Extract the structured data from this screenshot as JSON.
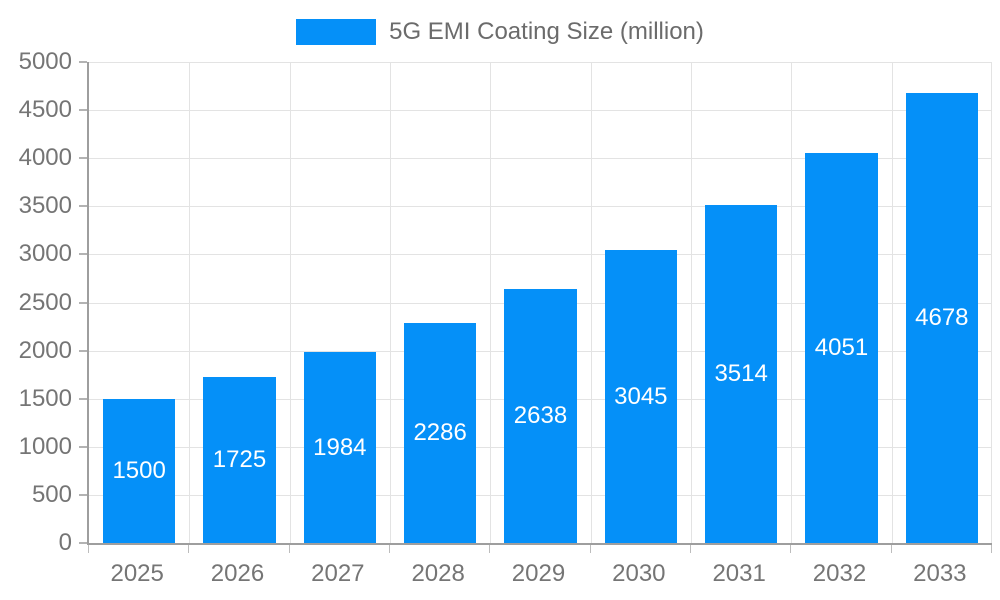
{
  "legend": {
    "label": "5G EMI Coating Size (million)",
    "swatch_color": "#0590f8"
  },
  "chart_data": {
    "type": "bar",
    "title": "",
    "categories": [
      "2025",
      "2026",
      "2027",
      "2028",
      "2029",
      "2030",
      "2031",
      "2032",
      "2033"
    ],
    "values": [
      1500,
      1725,
      1984,
      2286,
      2638,
      3045,
      3514,
      4051,
      4678
    ],
    "series_name": "5G EMI Coating Size (million)",
    "xlabel": "",
    "ylabel": "",
    "ylim": [
      0,
      5000
    ],
    "ytick_step": 500,
    "grid": true,
    "legend_position": "top-center",
    "bar_color": "#0590f8",
    "value_label_color": "#ffffff",
    "axis_text_color": "#757575",
    "grid_color": "#e3e3e3",
    "axis_line_color": "#9e9e9e",
    "tick_color": "#bdbdbd",
    "bar_width_fraction": 0.72
  }
}
